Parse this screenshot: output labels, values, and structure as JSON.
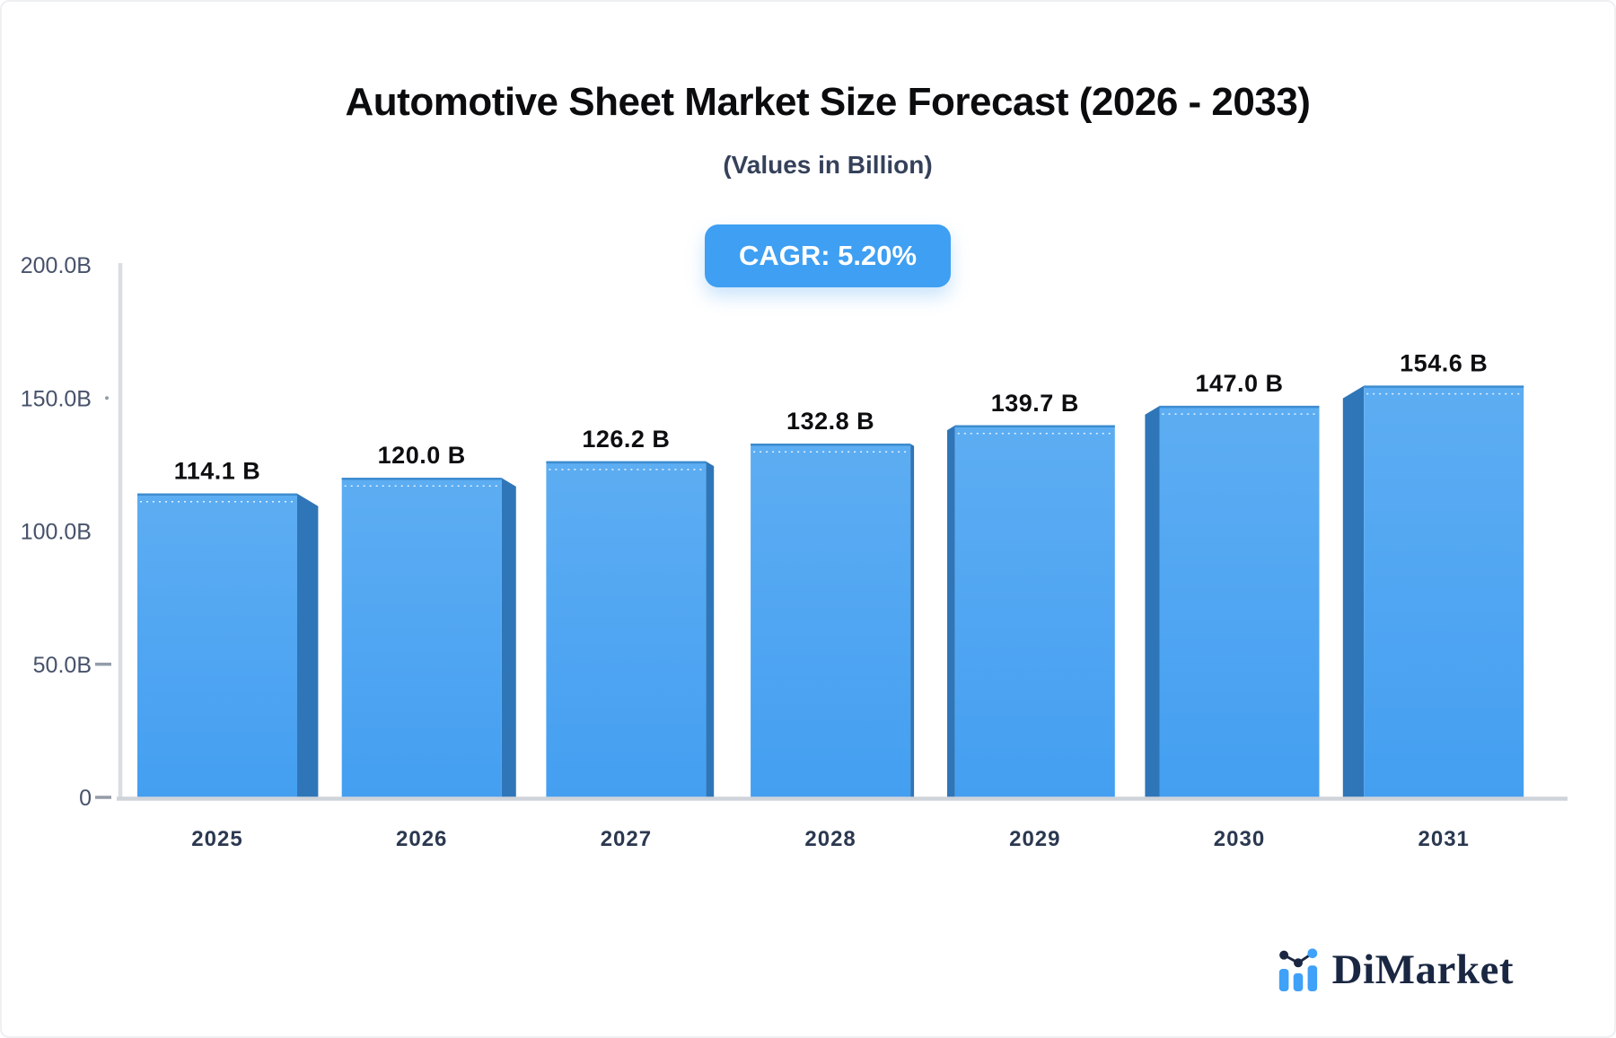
{
  "header": {
    "title": "Automotive Sheet Market Size Forecast (2026 - 2033)",
    "subtitle": "(Values in Billion)",
    "cagr_badge": "CAGR: 5.20%"
  },
  "chart_data": {
    "type": "bar",
    "title": "Automotive Sheet Market Size Forecast (2026 - 2033)",
    "subtitle": "(Values in Billion)",
    "unit": "Billion",
    "cagr": "5.20%",
    "categories": [
      "2025",
      "2026",
      "2027",
      "2028",
      "2029",
      "2030",
      "2031"
    ],
    "values": [
      114.1,
      120.0,
      126.2,
      132.8,
      139.7,
      147.0,
      154.6
    ],
    "value_labels": [
      "114.1 B",
      "120.0 B",
      "126.2 B",
      "132.8 B",
      "139.7 B",
      "147.0 B",
      "154.6 B"
    ],
    "ylim": [
      0,
      200
    ],
    "yticks": [
      0,
      50,
      100,
      150,
      200
    ],
    "ytick_labels": [
      "0",
      "50.0B",
      "100.0B",
      "150.0B",
      "200.0B"
    ],
    "grid": false,
    "legend_position": "none"
  },
  "footer": {
    "brand": "DiMarket"
  },
  "colors": {
    "bar_face_top": "#5dadf2",
    "bar_face_bottom": "#449ff1",
    "bar_side": "#2f76b8",
    "bar_top_edge": "#3d8ccf",
    "badge_bg": "#3f9ff2",
    "axis_line": "#dadde2",
    "baseline": "#cfd4da",
    "tick": "#949ca9",
    "ytick_text": "#47526a",
    "xtick_text": "#2b3850",
    "value_text": "#0d0e10",
    "title_text": "#0b0c0e",
    "subtitle_text": "#35415a",
    "brand_navy": "#1a2742",
    "brand_blue": "#3fa1f8"
  }
}
